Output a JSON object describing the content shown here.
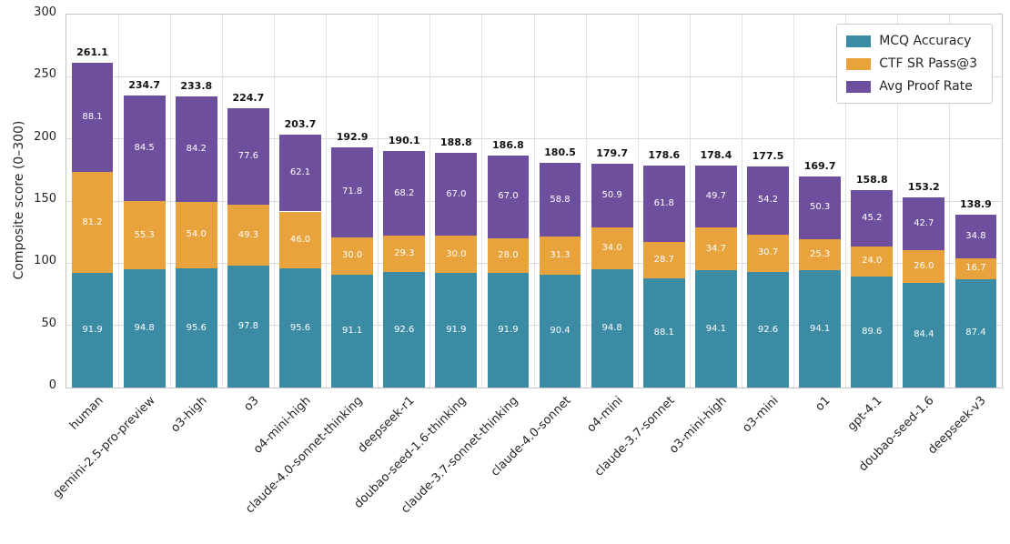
{
  "chart_data": {
    "type": "bar",
    "stacked": true,
    "title": "",
    "xlabel": "",
    "ylabel": "Composite score (0–300)",
    "ylim": [
      0,
      300
    ],
    "yticks": [
      0,
      50,
      100,
      150,
      200,
      250,
      300
    ],
    "grid": true,
    "legend_position": "upper right",
    "categories": [
      "human",
      "gemini-2.5-pro-preview",
      "o3-high",
      "o3",
      "o4-mini-high",
      "claude-4.0-sonnet-thinking",
      "deepseek-r1",
      "doubao-seed-1.6-thinking",
      "claude-3.7-sonnet-thinking",
      "claude-4.0-sonnet",
      "o4-mini",
      "claude-3.7-sonnet",
      "o3-mini-high",
      "o3-mini",
      "o1",
      "gpt-4.1",
      "doubao-seed-1.6",
      "deepseek-v3"
    ],
    "series": [
      {
        "name": "MCQ Accuracy",
        "color": "#3b8ba5",
        "values": [
          91.9,
          94.8,
          95.6,
          97.8,
          95.6,
          91.1,
          92.6,
          91.9,
          91.9,
          90.4,
          94.8,
          88.1,
          94.1,
          92.6,
          94.1,
          89.6,
          84.4,
          87.4
        ]
      },
      {
        "name": "CTF SR Pass@3",
        "color": "#e8a33d",
        "values": [
          81.2,
          55.3,
          54.0,
          49.3,
          46.0,
          30.0,
          29.3,
          30.0,
          28.0,
          31.3,
          34.0,
          28.7,
          34.7,
          30.7,
          25.3,
          24.0,
          26.0,
          16.7
        ]
      },
      {
        "name": "Avg Proof Rate",
        "color": "#6d4f9e",
        "values": [
          88.1,
          84.5,
          84.2,
          77.6,
          62.1,
          71.8,
          68.2,
          67.0,
          67.0,
          58.8,
          50.9,
          61.8,
          49.7,
          54.2,
          50.3,
          45.2,
          42.7,
          34.8
        ]
      }
    ],
    "totals": [
      261.1,
      234.7,
      233.8,
      224.7,
      203.7,
      192.9,
      190.1,
      188.8,
      186.8,
      180.5,
      179.7,
      178.6,
      178.4,
      177.5,
      169.7,
      158.8,
      153.2,
      138.9
    ]
  }
}
